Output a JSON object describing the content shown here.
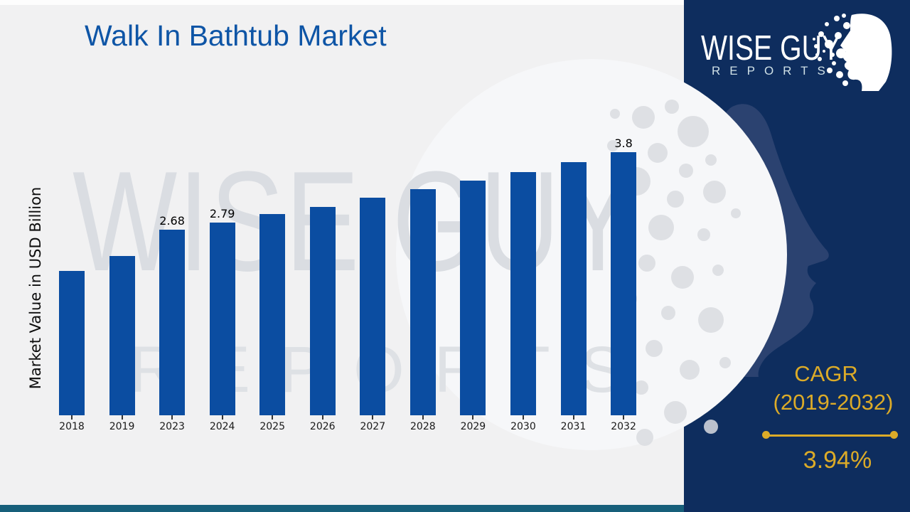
{
  "title": {
    "text": "Walk In Bathtub Market"
  },
  "watermark": {
    "line1": "WISE GUY",
    "line2": "REPORTS"
  },
  "chart_data": {
    "type": "bar",
    "title": "Walk In Bathtub Market",
    "categories": [
      "2018",
      "2019",
      "2023",
      "2024",
      "2025",
      "2026",
      "2027",
      "2028",
      "2029",
      "2030",
      "2031",
      "2032"
    ],
    "values": [
      2.09,
      2.3,
      2.68,
      2.79,
      2.91,
      3.01,
      3.14,
      3.27,
      3.39,
      3.52,
      3.66,
      3.8
    ],
    "bar_labels": [
      "",
      "",
      "2.68",
      "2.79",
      "",
      "",
      "",
      "",
      "",
      "",
      "",
      "3.8"
    ],
    "xlabel": "",
    "ylabel": "Market Value in USD Billion",
    "ylim": [
      0,
      4.0
    ],
    "grid": false,
    "legend_position": "none",
    "bar_color": "#0b4da1"
  },
  "side_panel": {
    "logo": {
      "brand": "WISE GUY",
      "sub_brand": "REPORTS"
    },
    "cagr": {
      "heading": "CAGR",
      "range": "(2019-2032)",
      "value": "3.94%"
    }
  },
  "colors": {
    "background": "#f1f1f2",
    "panel_navy": "#0e2d5e",
    "face_navy": "#2b4270",
    "bar_blue": "#0b4da1",
    "title_blue": "#0e55a6",
    "gold": "#dcab28",
    "teal_strip": "#175f7a",
    "watermark_gray": "#d9dce1"
  }
}
